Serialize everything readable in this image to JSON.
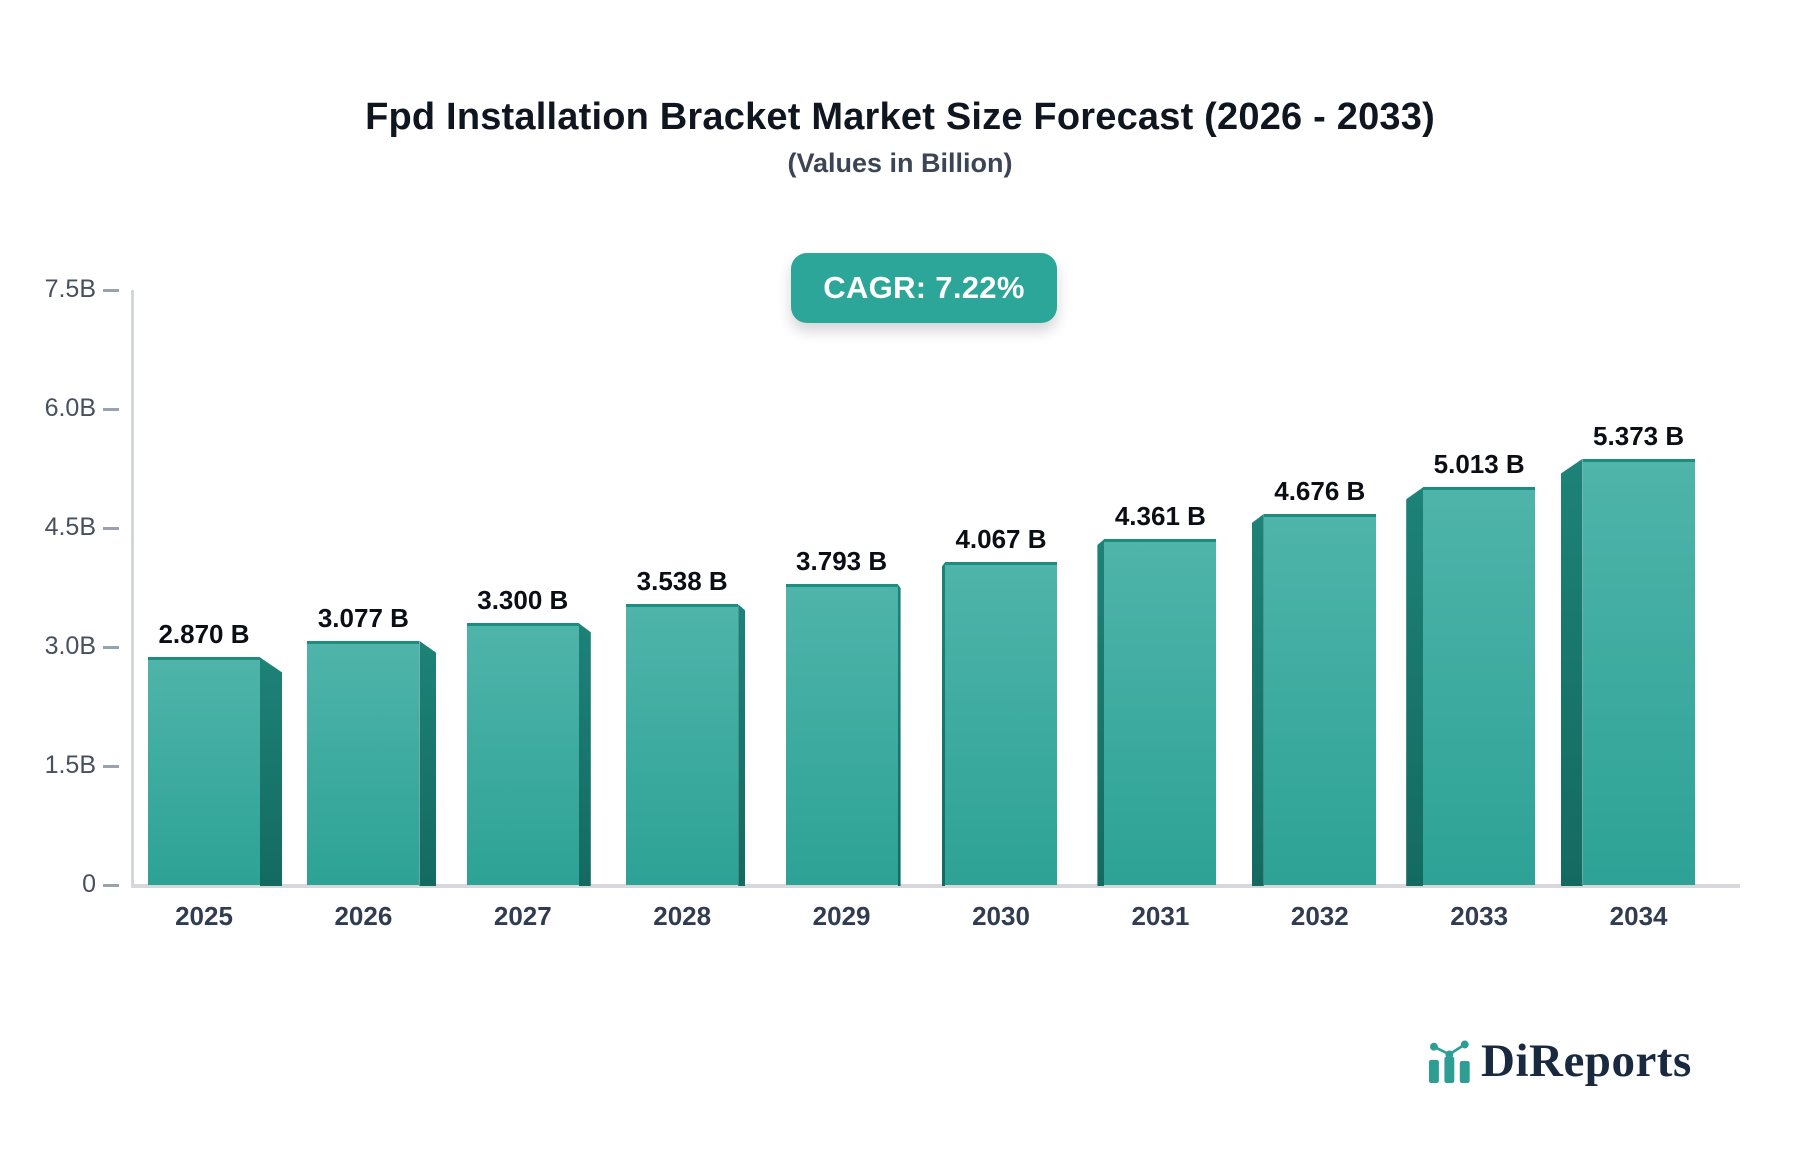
{
  "title": "Fpd Installation Bracket Market Size Forecast (2026 - 2033)",
  "subtitle": "(Values in Billion)",
  "cagr": {
    "label": "CAGR: 7.22%"
  },
  "brand": {
    "name": "DiReports",
    "icon": "bar-chart-logo-icon"
  },
  "colors": {
    "accent_teal": "#2ca699",
    "bar_face_top": "#4fb4aa",
    "bar_face_bottom": "#2da295",
    "bar_side_top": "#1d8278",
    "bar_side_bottom": "#146a60",
    "bar_top_edge": "#1f8c82",
    "axis_line": "#d7d7de",
    "tick_dash": "#9aa2ae",
    "badge_text": "#ffffff",
    "value_label_text": "#0b0f15",
    "x_label_text": "#303c51",
    "y_label_text": "#47505f",
    "brand_text": "#182940",
    "brand_icon": "#2e9e95"
  },
  "chart_data": {
    "type": "bar",
    "title": "Fpd Installation Bracket Market Size Forecast (2026 - 2033)",
    "subtitle": "(Values in Billion)",
    "unit": "Billion",
    "categories": [
      "2025",
      "2026",
      "2027",
      "2028",
      "2029",
      "2030",
      "2031",
      "2032",
      "2033",
      "2034"
    ],
    "values": [
      2.87,
      3.077,
      3.3,
      3.538,
      3.793,
      4.067,
      4.361,
      4.676,
      5.013,
      5.373
    ],
    "value_labels": [
      "2.870 B",
      "3.077 B",
      "3.300 B",
      "3.538 B",
      "3.793 B",
      "4.067 B",
      "4.361 B",
      "4.676 B",
      "5.013 B",
      "5.373 B"
    ],
    "xlabel": "",
    "ylabel": "",
    "ylim": [
      0,
      7.5
    ],
    "yticks": [
      {
        "value": 0,
        "label": "0"
      },
      {
        "value": 1.5,
        "label": "1.5B"
      },
      {
        "value": 3.0,
        "label": "3.0B"
      },
      {
        "value": 4.5,
        "label": "4.5B"
      },
      {
        "value": 6.0,
        "label": "6.0B"
      },
      {
        "value": 7.5,
        "label": "7.5B"
      }
    ],
    "grid": false,
    "legend": false,
    "annotations": [
      {
        "type": "badge",
        "text": "CAGR: 7.22%"
      }
    ]
  }
}
